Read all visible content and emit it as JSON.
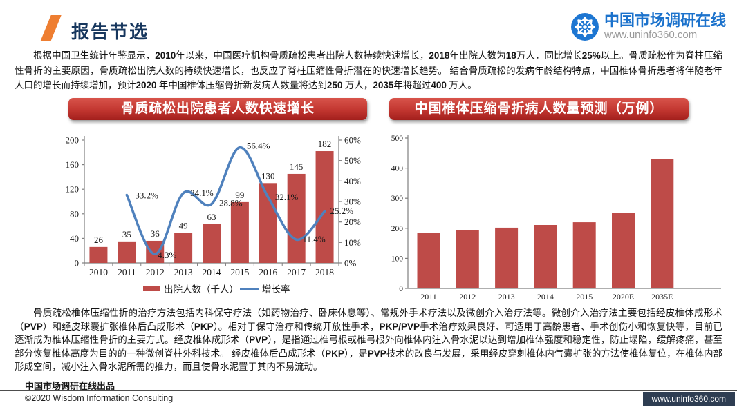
{
  "header": {
    "title": "报告节选",
    "logo_name": "中国市场调研在线",
    "logo_url": "www.uninfo360.com"
  },
  "intro": {
    "segments": [
      {
        "text": "根据中国卫生统计年鉴显示，",
        "bold": false
      },
      {
        "text": "2010",
        "bold": true
      },
      {
        "text": "年以来，中国医疗机构骨质疏松患者出院人数持续快速增长，",
        "bold": false
      },
      {
        "text": "2018",
        "bold": true
      },
      {
        "text": "年出院人数为",
        "bold": false
      },
      {
        "text": "18",
        "bold": true
      },
      {
        "text": "万人，同比增长",
        "bold": false
      },
      {
        "text": "25%",
        "bold": true
      },
      {
        "text": "以上。骨质疏松作为脊柱压缩性骨折的主要原因，骨质疏松出院人数的持续快速增长，也反应了脊柱压缩性骨折潜在的快速增长趋势。 结合骨质疏松的发病年龄结构特点，中国椎体骨折患者将伴随老年人口的增长而持续增加，预计",
        "bold": false
      },
      {
        "text": "2020",
        "bold": true
      },
      {
        "text": " 年中国椎体压缩骨折新发病人数量将达到",
        "bold": false
      },
      {
        "text": "250",
        "bold": true
      },
      {
        "text": " 万人，",
        "bold": false
      },
      {
        "text": "2035",
        "bold": true
      },
      {
        "text": "年将超过",
        "bold": false
      },
      {
        "text": "400",
        "bold": true
      },
      {
        "text": " 万人。",
        "bold": false
      }
    ]
  },
  "chart_data": [
    {
      "type": "bar+line",
      "title": "骨质疏松出院患者人数快速增长",
      "categories": [
        "2010",
        "2011",
        "2012",
        "2013",
        "2014",
        "2015",
        "2016",
        "2017",
        "2018"
      ],
      "series": [
        {
          "name": "出院人数（千人）",
          "type": "bar",
          "axis": "left",
          "color": "#be4b48",
          "values": [
            26,
            35,
            36,
            49,
            63,
            99,
            130,
            145,
            182
          ]
        },
        {
          "name": "增长率",
          "type": "line",
          "axis": "right",
          "color": "#4f81bd",
          "values": [
            null,
            33.2,
            4.3,
            34.1,
            28.8,
            56.4,
            32.1,
            11.4,
            25.2
          ],
          "point_labels": [
            "",
            "33.2%",
            "4.3%",
            "34.1%",
            "28.8%",
            "56.4%",
            "32.1%",
            "11.4%",
            "25.2%"
          ]
        }
      ],
      "left_axis": {
        "min": 0,
        "max": 200,
        "step": 40,
        "suffix": ""
      },
      "right_axis": {
        "min": 0,
        "max": 60,
        "step": 10,
        "suffix": "%"
      },
      "legend": [
        "出院人数（千人）",
        "增长率"
      ],
      "grid": false,
      "legend_position": "bottom"
    },
    {
      "type": "bar",
      "title": "中国椎体压缩骨折病人数量预测（万例）",
      "categories": [
        "2011",
        "2012",
        "2013",
        "2014",
        "2015",
        "2020E",
        "2035E"
      ],
      "values": [
        185,
        193,
        202,
        211,
        220,
        251,
        430
      ],
      "color": "#be4b48",
      "ylim": [
        0,
        500
      ],
      "ystep": 100,
      "grid": false
    }
  ],
  "body": {
    "segments": [
      {
        "text": "骨质疏松椎体压缩性折的治疗方法包括内科保守疗法（如药物治疗、卧床休息等）、常规外手术疗法以及微创介入治疗法等。微创介入治疗法主要包括经皮椎体成形术（",
        "bold": false
      },
      {
        "text": "PVP",
        "bold": true
      },
      {
        "text": "）和经皮球囊扩张椎体后凸成形术（",
        "bold": false
      },
      {
        "text": "PKP",
        "bold": true
      },
      {
        "text": "）。相对于保守治疗和传统开放性手术，",
        "bold": false
      },
      {
        "text": "PKP/PVP",
        "bold": true
      },
      {
        "text": "手术治疗效果良好、可适用于高龄患者、手术创伤小和恢复快等，目前已逐渐成为椎体压缩性骨折的主要方式。经皮椎体成形术（",
        "bold": false
      },
      {
        "text": "PVP",
        "bold": true
      },
      {
        "text": "），是指通过椎弓根或椎弓根外向椎体内注入骨水泥以达到增加椎体强度和稳定性，防止塌陷，缓解疼痛，甚至部分恢复椎体高度为目的的一种微创脊柱外科技术。 经皮椎体后凸成形术（",
        "bold": false
      },
      {
        "text": "PKP",
        "bold": true
      },
      {
        "text": "），是",
        "bold": false
      },
      {
        "text": "PVP",
        "bold": true
      },
      {
        "text": "技术的改良与发展，采用经皮穿刺椎体内气囊扩张的方法使椎体复位，在椎体内部形成空间，减小注入骨水泥所需的推力，而且使骨水泥置于其内不易流动。",
        "bold": false
      }
    ]
  },
  "footer": {
    "brand": "中国市场调研在线出品",
    "copyright": "©2020 Wisdom Information Consulting",
    "site": "www.uninfo360.com"
  }
}
